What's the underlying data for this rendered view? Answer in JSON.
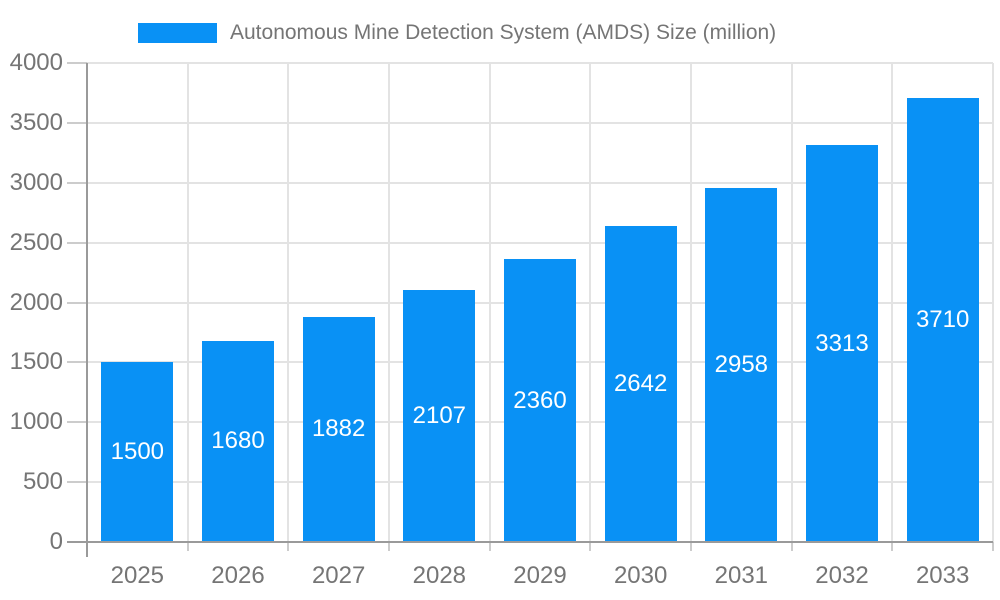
{
  "chart_data": {
    "type": "bar",
    "title": "Autonomous Mine Detection System (AMDS) Size (million)",
    "categories": [
      "2025",
      "2026",
      "2027",
      "2028",
      "2029",
      "2030",
      "2031",
      "2032",
      "2033"
    ],
    "values": [
      1500,
      1680,
      1882,
      2107,
      2360,
      2642,
      2958,
      3313,
      3710
    ],
    "xlabel": "",
    "ylabel": "",
    "ylim": [
      0,
      4000
    ],
    "yticks": [
      0,
      500,
      1000,
      1500,
      2000,
      2500,
      3000,
      3500,
      4000
    ],
    "grid": true,
    "legend_position": "top",
    "bar_labels_inside": true,
    "colors": {
      "bar": "#0991f5",
      "bar_label": "#ffffff",
      "axis_text": "#757575",
      "legend_text": "#757575",
      "gridline": "#e3e3e3",
      "axis_line": "#9a9a9a",
      "tick": "#cccccc",
      "background": "#ffffff"
    }
  }
}
